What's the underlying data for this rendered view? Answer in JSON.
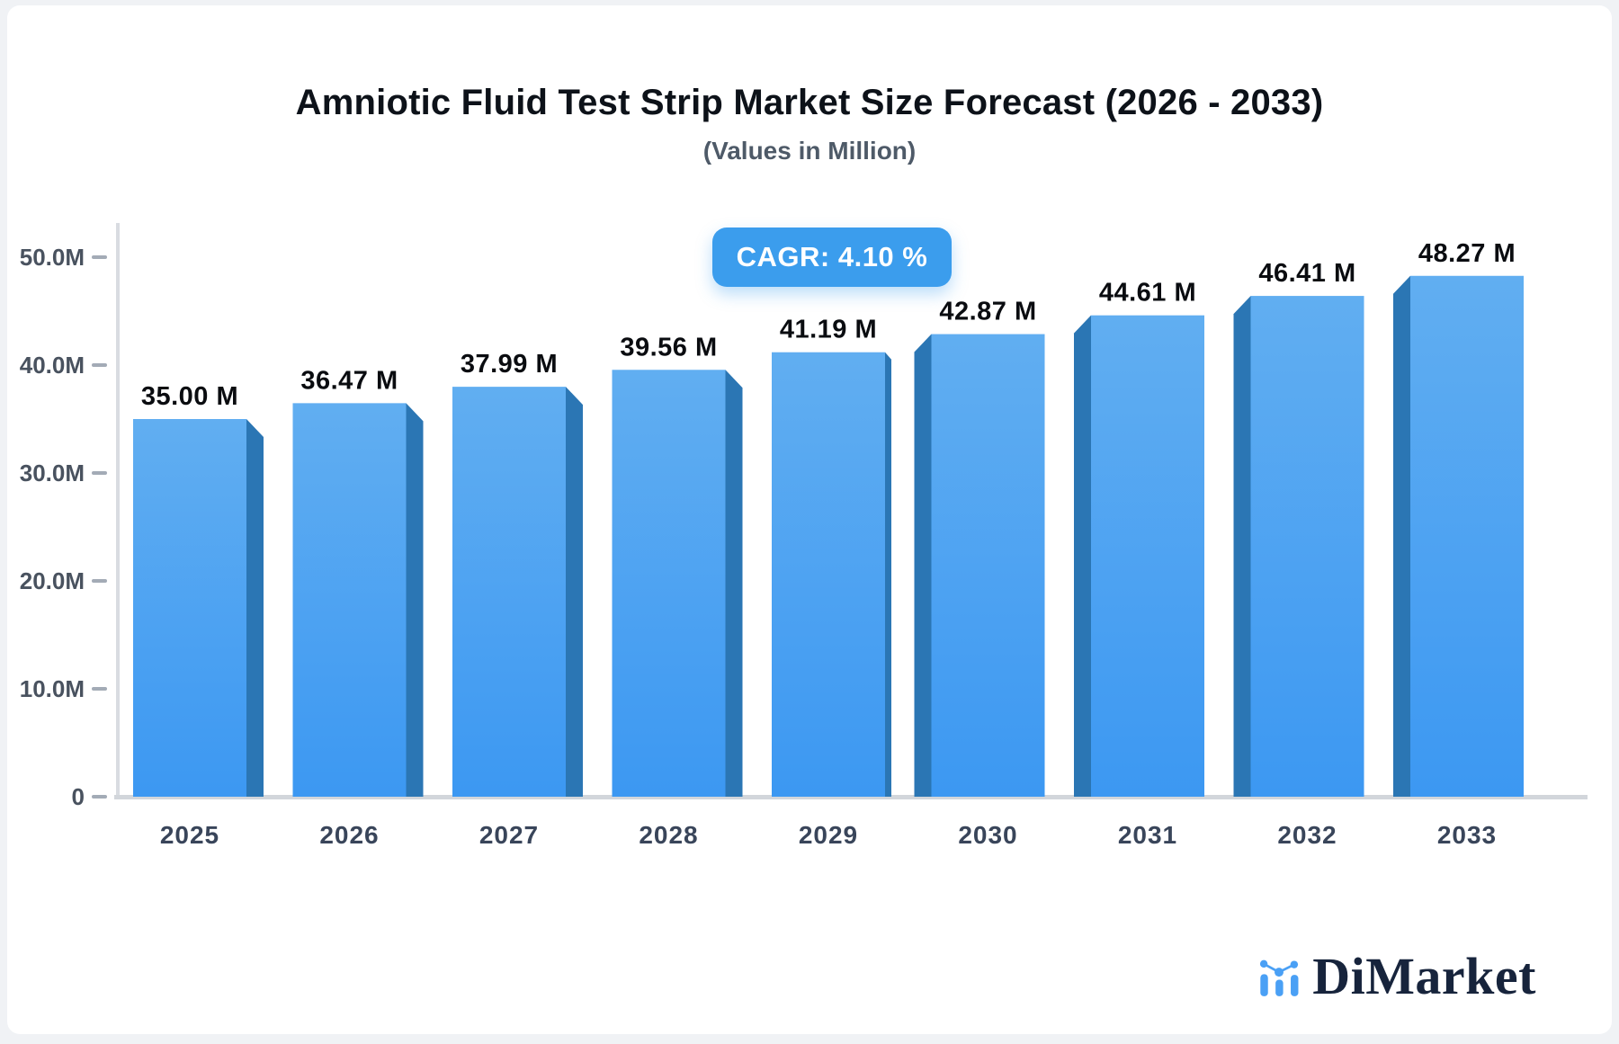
{
  "page": {
    "background_color": "#f0f2f5",
    "card_color": "#ffffff"
  },
  "header": {
    "title": "Amniotic Fluid Test Strip Market Size Forecast (2026 - 2033)",
    "subtitle": "(Values in Million)"
  },
  "badge": {
    "label": "CAGR: 4.10 %",
    "background_color": "#3b9ded",
    "text_color": "#ffffff"
  },
  "chart_data": {
    "type": "bar",
    "title": "Amniotic Fluid Test Strip Market Size Forecast (2026 - 2033)",
    "subtitle": "(Values in Million)",
    "xlabel": "",
    "ylabel": "",
    "unit": "Million",
    "categories": [
      "2025",
      "2026",
      "2027",
      "2028",
      "2029",
      "2030",
      "2031",
      "2032",
      "2033"
    ],
    "values": [
      35.0,
      36.47,
      37.99,
      39.56,
      41.19,
      42.87,
      44.61,
      46.41,
      48.27
    ],
    "value_labels": [
      "35.00 M",
      "36.47 M",
      "37.99 M",
      "39.56 M",
      "41.19 M",
      "42.87 M",
      "44.61 M",
      "46.41 M",
      "48.27 M"
    ],
    "ylim": [
      0,
      50
    ],
    "y_ticks": [
      {
        "value": 0,
        "label": "0"
      },
      {
        "value": 10,
        "label": "10.0M"
      },
      {
        "value": 20,
        "label": "20.0M"
      },
      {
        "value": 30,
        "label": "30.0M"
      },
      {
        "value": 40,
        "label": "40.0M"
      },
      {
        "value": 50,
        "label": "50.0M"
      }
    ],
    "grid": false,
    "legend": false,
    "effect": "3d-extruded-bars",
    "colors": {
      "bar_face_top": "#61aef1",
      "bar_face_bottom": "#3c98f2",
      "bar_side": "#2b76b4",
      "axis_line": "#d9dce1",
      "baseline": "#d2d6db",
      "tick_dash": "#a3abb6",
      "tick_label": "#49525f",
      "category_label": "#39455a",
      "value_label": "#0a0c10"
    }
  },
  "footer": {
    "brand_name": "DiMarket",
    "brand_icon": "bar-line-chart-icon",
    "brand_icon_color": "#4aa0f5",
    "brand_text_color": "#17243c"
  }
}
